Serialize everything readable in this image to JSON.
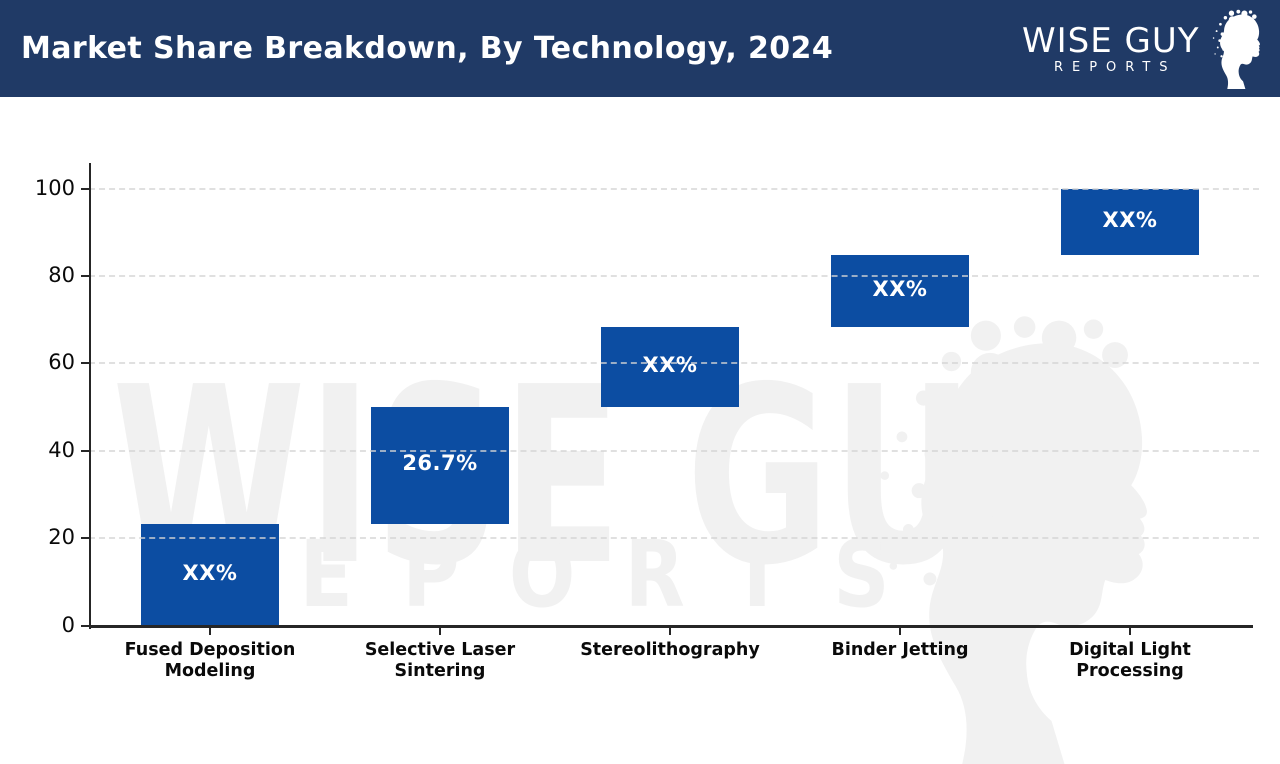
{
  "header": {
    "title": "Market Share Breakdown, By Technology, 2024",
    "logo": {
      "line1": "WISE GUY",
      "line2": "REPORTS"
    }
  },
  "watermark": {
    "line1": "WISE GUY",
    "line2": "REPORTS"
  },
  "colors": {
    "header_bg": "#203a66",
    "bar": "#0c4da2",
    "bar_label": "#ffffff",
    "axis": "#262626",
    "grid_dash": "rgba(212,212,212,0.72)",
    "watermark": "#f1f1f1",
    "page_border": "#cccccc"
  },
  "chart_data": {
    "type": "bar",
    "variant": "waterfall",
    "title": "Market Share Breakdown, By Technology, 2024",
    "categories": [
      "Fused Deposition Modeling",
      "Selective Laser Sintering",
      "Stereolithography",
      "Binder Jetting",
      "Digital Light Processing"
    ],
    "category_label_lines": [
      [
        "Fused Deposition",
        "Modeling"
      ],
      [
        "Selective Laser",
        "Sintering"
      ],
      [
        "Stereolithography"
      ],
      [
        "Binder Jetting"
      ],
      [
        "Digital Light",
        "Processing"
      ]
    ],
    "segments": [
      {
        "category": "Fused Deposition Modeling",
        "start": 0,
        "end": 23.3,
        "value_label": "XX%"
      },
      {
        "category": "Selective Laser Sintering",
        "start": 23.3,
        "end": 50.0,
        "value": 26.7,
        "value_label": "26.7%"
      },
      {
        "category": "Stereolithography",
        "start": 50.0,
        "end": 68.3,
        "value_label": "XX%"
      },
      {
        "category": "Binder Jetting",
        "start": 68.3,
        "end": 84.8,
        "value_label": "XX%"
      },
      {
        "category": "Digital Light Processing",
        "start": 84.8,
        "end": 100.0,
        "value_label": "XX%"
      }
    ],
    "yticks": [
      0,
      20,
      40,
      60,
      80,
      100
    ],
    "ylim": [
      0,
      105
    ],
    "xlabel": "",
    "ylabel": "",
    "grid": "horizontal-dashed",
    "legend": "none"
  }
}
